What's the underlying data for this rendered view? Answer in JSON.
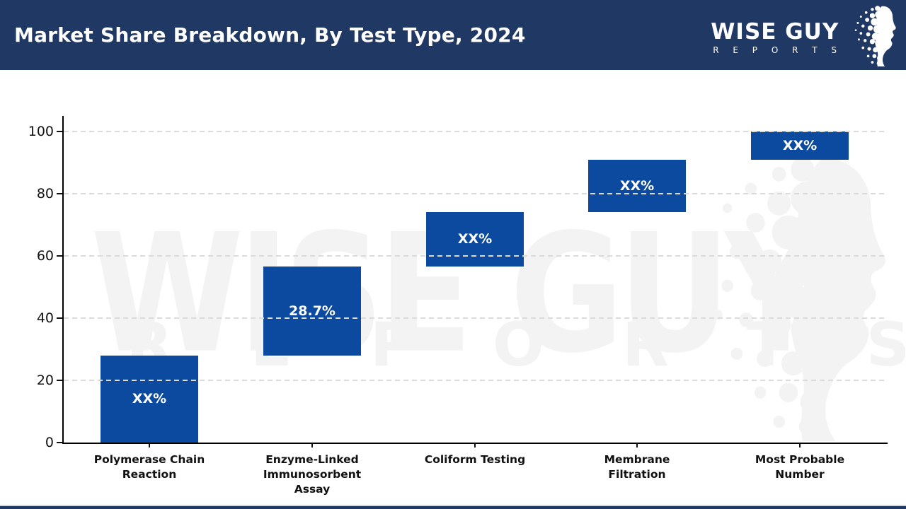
{
  "header": {
    "title": "Market Share Breakdown, By Test Type, 2024"
  },
  "logo": {
    "wordmark": "WISE GUY",
    "subtext": "R E P O R T S"
  },
  "watermark": {
    "line1": "WISE GUY",
    "line2": "R E P O R T S"
  },
  "colors": {
    "header_bg": "#1F3864",
    "bar_blue": "#0B4A9E",
    "gridline_gray": "#DBDBDB",
    "watermark_gray": "#F3F3F3",
    "bar_label_white": "#FFFFFF",
    "text_dark": "#111111"
  },
  "chart_data": {
    "type": "bar",
    "subtype": "waterfall",
    "title": "Market Share Breakdown, By Test Type, 2024",
    "xlabel": "",
    "ylabel": "",
    "ylim": [
      0,
      105
    ],
    "yticks": [
      0,
      20,
      40,
      60,
      80,
      100
    ],
    "grid": "horizontal dashed",
    "legend": "none",
    "categories": [
      "Polymerase Chain Reaction",
      "Enzyme-Linked Immunosorbent Assay",
      "Coliform Testing",
      "Membrane Filtration",
      "Most Probable Number"
    ],
    "category_lines": [
      [
        "Polymerase Chain",
        "Reaction"
      ],
      [
        "Enzyme-Linked",
        "Immunosorbent",
        "Assay"
      ],
      [
        "Coliform Testing"
      ],
      [
        "Membrane",
        "Filtration"
      ],
      [
        "Most Probable",
        "Number"
      ]
    ],
    "bars": [
      {
        "category": "Polymerase Chain Reaction",
        "label": "XX%",
        "start": 0,
        "end": 28.0
      },
      {
        "category": "Enzyme-Linked Immunosorbent Assay",
        "label": "28.7%",
        "start": 28.0,
        "end": 56.7
      },
      {
        "category": "Coliform Testing",
        "label": "XX%",
        "start": 56.7,
        "end": 74.0
      },
      {
        "category": "Membrane Filtration",
        "label": "XX%",
        "start": 74.0,
        "end": 90.8
      },
      {
        "category": "Most Probable Number",
        "label": "XX%",
        "start": 90.8,
        "end": 99.9
      }
    ]
  }
}
